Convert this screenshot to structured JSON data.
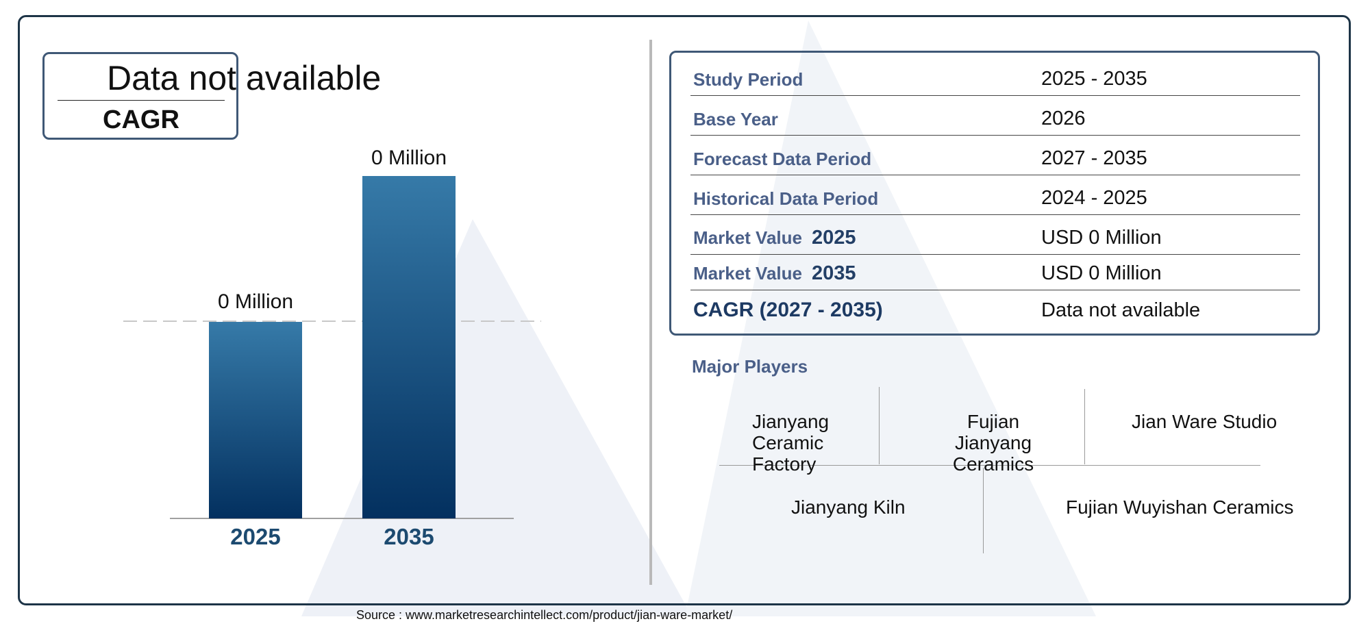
{
  "cagr_box": {
    "value": "Data not available",
    "label": "CAGR"
  },
  "chart_data": {
    "type": "bar",
    "categories": [
      "2025",
      "2035"
    ],
    "values": [
      0,
      0
    ],
    "data_labels": [
      "0 Million",
      "0 Million"
    ],
    "title": "",
    "xlabel": "",
    "ylabel": "",
    "grid": false,
    "bar_color_top": "#367aa8",
    "bar_color_bottom": "#03305f"
  },
  "info": {
    "rows": [
      {
        "label": "Study Period",
        "value": "2025 - 2035"
      },
      {
        "label": "Base Year",
        "value": "2026"
      },
      {
        "label": "Forecast Data Period",
        "value": "2027 - 2035"
      },
      {
        "label": "Historical Data Period",
        "value": "2024 - 2025"
      },
      {
        "label": "Market Value",
        "year": "2025",
        "value": "USD 0 Million"
      },
      {
        "label": "Market Value",
        "year": "2035",
        "value": "USD 0 Million"
      },
      {
        "label": "CAGR (2027 - 2035)",
        "value": "Data not available"
      }
    ]
  },
  "players": {
    "title": "Major Players",
    "items": [
      "Jianyang Ceramic Factory",
      "Fujian Jianyang Ceramics",
      "Jian Ware Studio",
      "Jianyang Kiln",
      "Fujian Wuyishan Ceramics"
    ]
  },
  "source": "Source : www.marketresearchintellect.com/product/jian-ware-market/"
}
